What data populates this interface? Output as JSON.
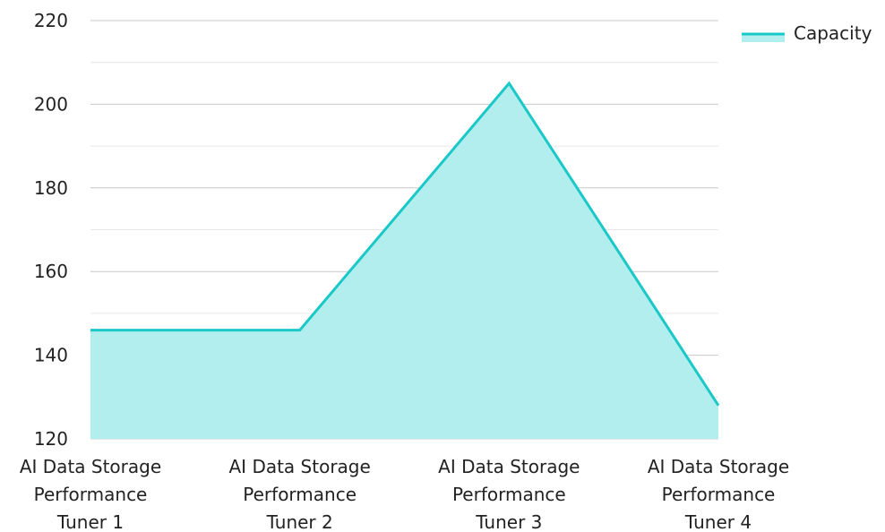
{
  "chart_data": {
    "type": "area",
    "categories": [
      [
        "AI Data Storage",
        "Performance",
        "Tuner 1"
      ],
      [
        "AI Data Storage",
        "Performance",
        "Tuner 2"
      ],
      [
        "AI Data Storage",
        "Performance",
        "Tuner 3"
      ],
      [
        "AI Data Storage",
        "Performance",
        "Tuner 4"
      ]
    ],
    "series": [
      {
        "name": "Capacity",
        "values": [
          146,
          146,
          205,
          128
        ],
        "line_color": "#1ac8c8",
        "fill_color": "#b2eeee"
      }
    ],
    "ylim": [
      120,
      220
    ],
    "yticks": [
      120,
      140,
      160,
      180,
      200,
      220
    ],
    "minor_step": 10,
    "grid": true,
    "legend_position": "top-right"
  }
}
